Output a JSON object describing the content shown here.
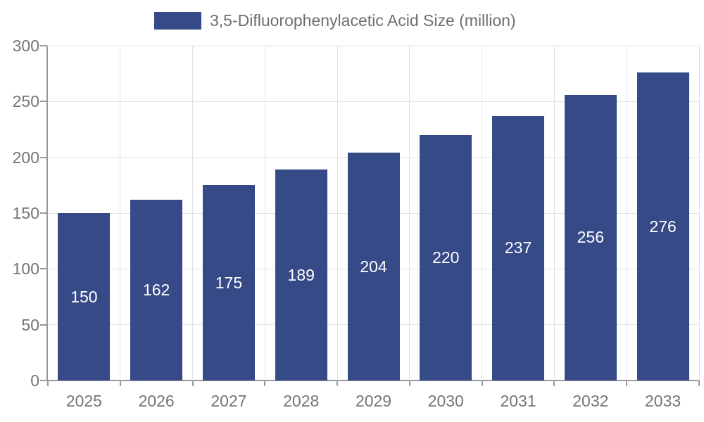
{
  "legend": {
    "label": "3,5-Difluorophenylacetic Acid Size (million)"
  },
  "chart_data": {
    "type": "bar",
    "title": "3,5-Difluorophenylacetic Acid Size (million)",
    "categories": [
      "2025",
      "2026",
      "2027",
      "2028",
      "2029",
      "2030",
      "2031",
      "2032",
      "2033"
    ],
    "values": [
      150,
      162,
      175,
      189,
      204,
      220,
      237,
      256,
      276
    ],
    "xlabel": "",
    "ylabel": "",
    "ylim": [
      0,
      300
    ],
    "yticks": [
      0,
      50,
      100,
      150,
      200,
      250,
      300
    ],
    "grid": true,
    "legend_position": "top",
    "value_labels": "centered-inside-bars"
  },
  "colors": {
    "bar": "#364a88",
    "grid": "#e2e2e2",
    "axis": "#999999",
    "tick_text": "#757575",
    "legend_text": "#6e6e6e",
    "value_label": "#ffffff",
    "background": "#ffffff"
  }
}
